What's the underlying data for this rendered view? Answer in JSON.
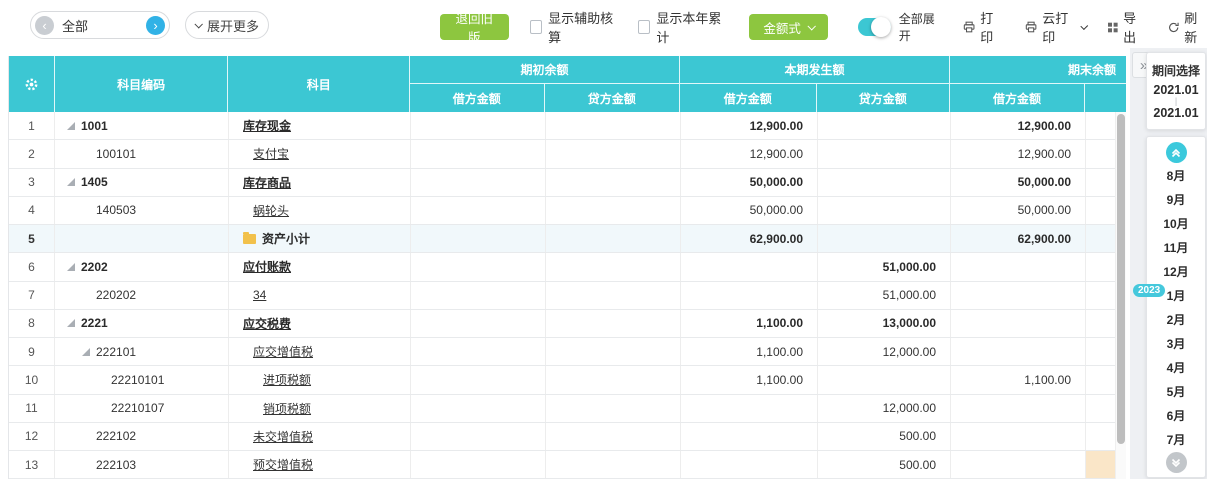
{
  "toolbar": {
    "account_filter": "全部",
    "prev_glyph": "‹",
    "next_glyph": "›",
    "expand_more": "展开更多",
    "back_to_old": "退回旧版",
    "show_aux": "显示辅助核算",
    "show_ytd": "显示本年累计",
    "amount_style": "金额式",
    "expand_all": "全部展开",
    "print": "打印",
    "cloud_print": "云打印",
    "export": "导出",
    "refresh": "刷新"
  },
  "table": {
    "header": {
      "code": "科目编码",
      "subject": "科目",
      "group_opening": "期初余额",
      "group_current": "本期发生额",
      "group_ending": "期末余额",
      "debit": "借方金额",
      "credit": "贷方金额"
    },
    "rows": [
      {
        "n": "1",
        "lvl": 1,
        "exp": true,
        "b": true,
        "code": "1001",
        "subject": "库存现金",
        "link": true,
        "init_dr": "",
        "init_cr": "",
        "cur_dr": "12,900.00",
        "cur_cr": "",
        "end_dr": "12,900.00"
      },
      {
        "n": "2",
        "lvl": 2,
        "code": "100101",
        "subject": "支付宝",
        "link": true,
        "cur_dr": "12,900.00",
        "end_dr": "12,900.00"
      },
      {
        "n": "3",
        "lvl": 1,
        "exp": true,
        "b": true,
        "code": "1405",
        "subject": "库存商品",
        "link": true,
        "cur_dr": "50,000.00",
        "end_dr": "50,000.00"
      },
      {
        "n": "4",
        "lvl": 2,
        "code": "140503",
        "subject": "蜗轮头",
        "link": true,
        "cur_dr": "50,000.00",
        "end_dr": "50,000.00"
      },
      {
        "n": "5",
        "lvl": 1,
        "b": true,
        "subtotal": true,
        "subject": "资产小计",
        "cur_dr": "62,900.00",
        "end_dr": "62,900.00"
      },
      {
        "n": "6",
        "lvl": 1,
        "exp": true,
        "b": true,
        "code": "2202",
        "subject": "应付账款",
        "link": true,
        "cur_cr": "51,000.00"
      },
      {
        "n": "7",
        "lvl": 2,
        "code": "220202",
        "subject": "34",
        "link": true,
        "cur_cr": "51,000.00"
      },
      {
        "n": "8",
        "lvl": 1,
        "exp": true,
        "b": true,
        "code": "2221",
        "subject": "应交税费",
        "link": true,
        "cur_dr": "1,100.00",
        "cur_cr": "13,000.00"
      },
      {
        "n": "9",
        "lvl": 2,
        "exp": true,
        "code": "222101",
        "subject": "应交增值税",
        "link": true,
        "cur_dr": "1,100.00",
        "cur_cr": "12,000.00"
      },
      {
        "n": "10",
        "lvl": 3,
        "code": "22210101",
        "subject": "进项税额",
        "link": true,
        "cur_dr": "1,100.00",
        "end_dr": "1,100.00"
      },
      {
        "n": "11",
        "lvl": 3,
        "code": "22210107",
        "subject": "销项税额",
        "link": true,
        "cur_cr": "12,000.00"
      },
      {
        "n": "12",
        "lvl": 2,
        "code": "222102",
        "subject": "未交增值税",
        "link": true,
        "cur_cr": "500.00"
      },
      {
        "n": "13",
        "lvl": 2,
        "code": "222103",
        "subject": "预交增值税",
        "link": true,
        "cur_cr": "500.00",
        "hl": true
      }
    ]
  },
  "sidebar": {
    "collapse_glyph": "»",
    "title": "期间选择",
    "period_start": "2021.01",
    "period_separator": "|",
    "period_end": "2021.01",
    "year_badge": "2023",
    "badge_month_index": 5,
    "months": [
      "8月",
      "9月",
      "10月",
      "11月",
      "12月",
      "1月",
      "2月",
      "3月",
      "4月",
      "5月",
      "6月",
      "7月"
    ]
  },
  "colors": {
    "header_cyan": "#3cc7d3",
    "button_green": "#8dc63f",
    "subtotal_row_bg": "#f1f8fb",
    "highlight_cell_bg": "#fae6c8",
    "badge_cyan": "#45c8dc"
  }
}
